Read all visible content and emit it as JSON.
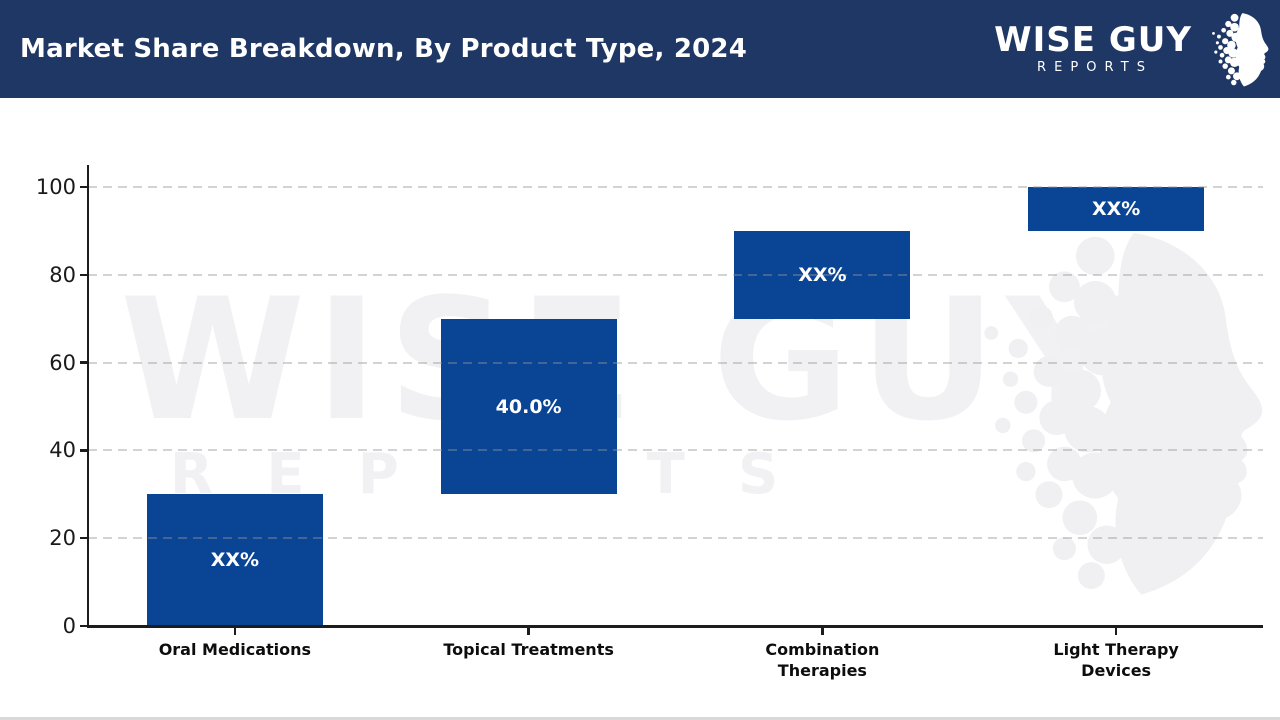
{
  "header": {
    "title": "Market Share Breakdown, By Product Type, 2024",
    "background_color": "#1f3765",
    "logo": {
      "line1": "WISE GUY",
      "line2": "REPORTS"
    }
  },
  "watermark": {
    "line1": "WISE GUY",
    "line2": "REPORTS"
  },
  "chart_data": {
    "type": "bar",
    "subtype": "floating-segment-waterfall",
    "title": "Market Share Breakdown, By Product Type, 2024",
    "categories": [
      "Oral Medications",
      "Topical Treatments",
      "Combination\nTherapies",
      "Light Therapy\nDevices"
    ],
    "segments": [
      {
        "category": "Oral Medications",
        "start": 0,
        "end": 30,
        "label": "XX%"
      },
      {
        "category": "Topical Treatments",
        "start": 30,
        "end": 70,
        "label": "40.0%"
      },
      {
        "category": "Combination Therapies",
        "start": 70,
        "end": 90,
        "label": "XX%"
      },
      {
        "category": "Light Therapy Devices",
        "start": 90,
        "end": 100,
        "label": "XX%"
      }
    ],
    "xlabel": "",
    "ylabel": "",
    "ylim": [
      0,
      100
    ],
    "yticks": [
      0,
      20,
      40,
      60,
      80,
      100
    ],
    "bar_color": "#0a4494",
    "bar_label_color": "#ffffff",
    "grid": true,
    "gridline_style": "dashed",
    "legend": false
  }
}
